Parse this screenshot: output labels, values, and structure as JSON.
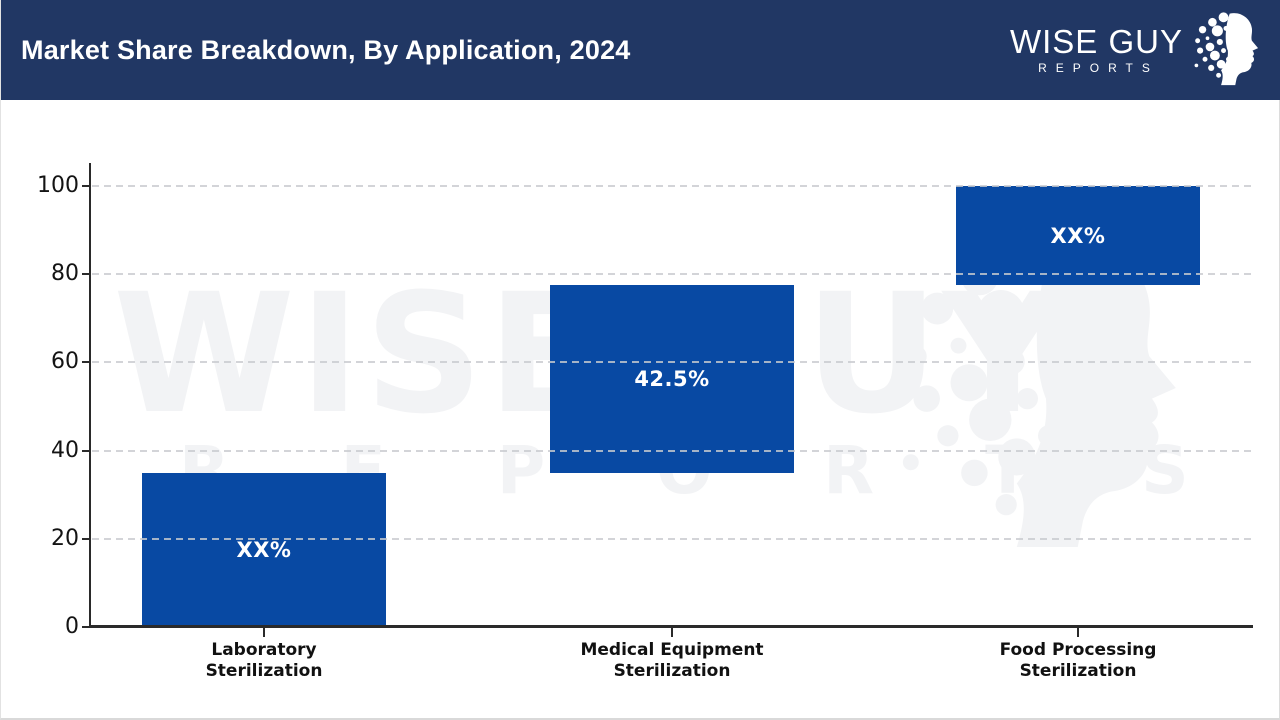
{
  "header": {
    "title": "Market Share Breakdown, By Application, 2024",
    "logo": {
      "line1": "WISE GUY",
      "line2": "REPORTS"
    }
  },
  "watermark": {
    "line1": "WISE GUY",
    "line2": "R E P O R T S"
  },
  "chart_data": {
    "type": "bar",
    "subtype": "floating-segment (waterfall-style market share)",
    "title": "Market Share Breakdown, By Application, 2024",
    "xlabel": "",
    "ylabel": "",
    "ylim": [
      0,
      100
    ],
    "yticks": [
      0,
      20,
      40,
      60,
      80,
      100
    ],
    "grid": "horizontal dashed",
    "legend": "none",
    "bar_color": "#0849a3",
    "value_label_color": "#ffffff",
    "category_names": [
      "Laboratory Sterilization",
      "Medical Equipment Sterilization",
      "Food Processing Sterilization"
    ],
    "segments": [
      {
        "category_lines": [
          "Laboratory",
          "Sterilization"
        ],
        "start": 0,
        "end": 35,
        "value_label": "XX%"
      },
      {
        "category_lines": [
          "Medical Equipment",
          "Sterilization"
        ],
        "start": 35,
        "end": 77.5,
        "value_label": "42.5%"
      },
      {
        "category_lines": [
          "Food Processing",
          "Sterilization"
        ],
        "start": 77.5,
        "end": 100,
        "value_label": "XX%"
      }
    ]
  },
  "colors": {
    "header_bg": "#213764",
    "bar": "#0849a3",
    "axis": "#2a2a2a",
    "grid": "#cdd0d4",
    "watermark": "#f2f3f5",
    "title_text": "#ffffff"
  }
}
